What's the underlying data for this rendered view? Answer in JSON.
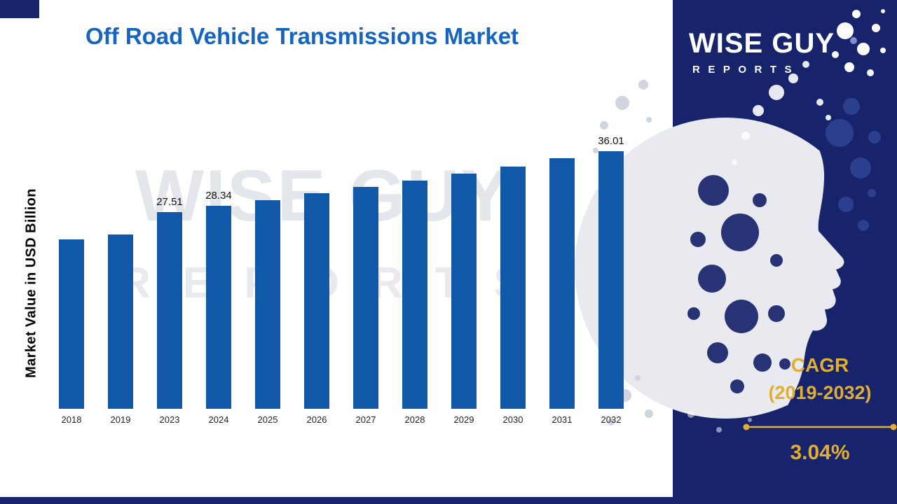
{
  "logo": {
    "name": "WISE GUY",
    "sub": "REPORTS"
  },
  "watermark": {
    "line1": "WISE GUY",
    "line2": "REPORTS"
  },
  "cagr": {
    "label": "CAGR",
    "range": "(2019-2032)",
    "value": "3.04%"
  },
  "colors": {
    "navy": "#17246b",
    "gold": "#e2ae2f",
    "bar": "#1159a8",
    "title_blue": "#1565c0",
    "watermark_gray": "#cdd2dc",
    "circle_gray": "#e9eaef"
  },
  "chart_data": {
    "type": "bar",
    "title": "Off Road Vehicle Transmissions Market",
    "xlabel": "",
    "ylabel": "Market Value in USD Billion",
    "categories": [
      "2018",
      "2019",
      "2023",
      "2024",
      "2025",
      "2026",
      "2027",
      "2028",
      "2029",
      "2030",
      "2031",
      "2032"
    ],
    "values": [
      23.7,
      24.4,
      27.51,
      28.34,
      29.2,
      30.1,
      31.0,
      31.9,
      32.9,
      33.9,
      35.0,
      36.01
    ],
    "data_labels": [
      "",
      "",
      "27.51",
      "28.34",
      "",
      "",
      "",
      "",
      "",
      "",
      "",
      "36.01"
    ],
    "ylim": [
      0,
      38
    ],
    "grid": false,
    "legend": false,
    "bar_color": "#1159a8"
  }
}
